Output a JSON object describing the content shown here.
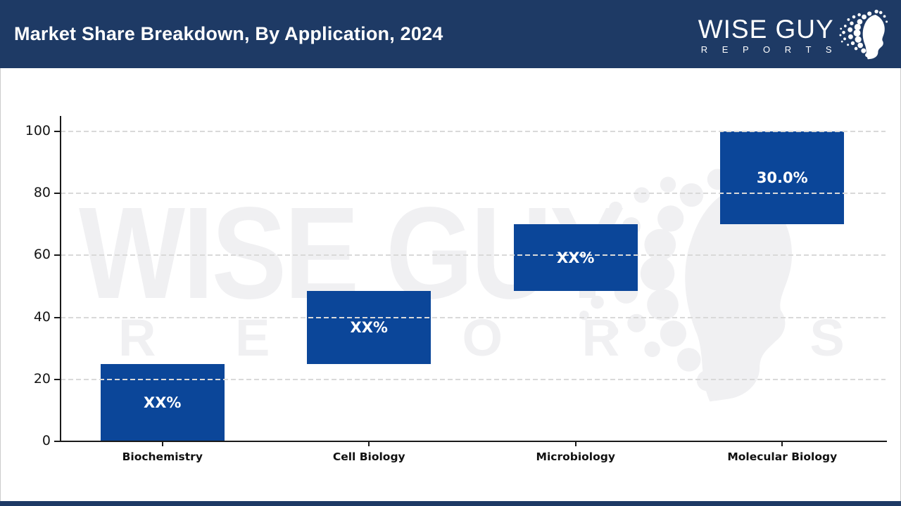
{
  "header": {
    "title": "Market Share Breakdown, By Application, 2024",
    "logo_line1": "WISE GUY",
    "logo_line2": "R E P O R T S"
  },
  "watermark": {
    "line1": "WISE GUY",
    "line2": "R E P O R T S"
  },
  "chart_data": {
    "type": "bar",
    "variant": "waterfall",
    "title": "Market Share Breakdown, By Application, 2024",
    "categories": [
      "Biochemistry",
      "Cell Biology",
      "Microbiology",
      "Molecular Biology"
    ],
    "series": [
      {
        "name": "Biochemistry",
        "start": 0,
        "end": 25,
        "value": 25,
        "value_label": "XX%"
      },
      {
        "name": "Cell Biology",
        "start": 25,
        "end": 48.5,
        "value": 23.5,
        "value_label": "XX%"
      },
      {
        "name": "Microbiology",
        "start": 48.5,
        "end": 70,
        "value": 21.5,
        "value_label": "XX%"
      },
      {
        "name": "Molecular Biology",
        "start": 70,
        "end": 100,
        "value": 30,
        "value_label": "30.0%"
      }
    ],
    "xlabel": "",
    "ylabel": "",
    "ylim": [
      0,
      100
    ],
    "yticks": [
      0,
      20,
      40,
      60,
      80,
      100
    ],
    "grid": "horizontal-dashed",
    "legend_position": "none",
    "bar_color": "#0b4699",
    "bar_label_color": "#ffffff",
    "axis_color": "#1a1a1a",
    "tick_label_color": "#151515",
    "gridline_color": "#d9d9d9"
  },
  "colors": {
    "header_bg": "#1e3a65",
    "footer_bg": "#1e3a65",
    "watermark": "#f0f0f2"
  }
}
